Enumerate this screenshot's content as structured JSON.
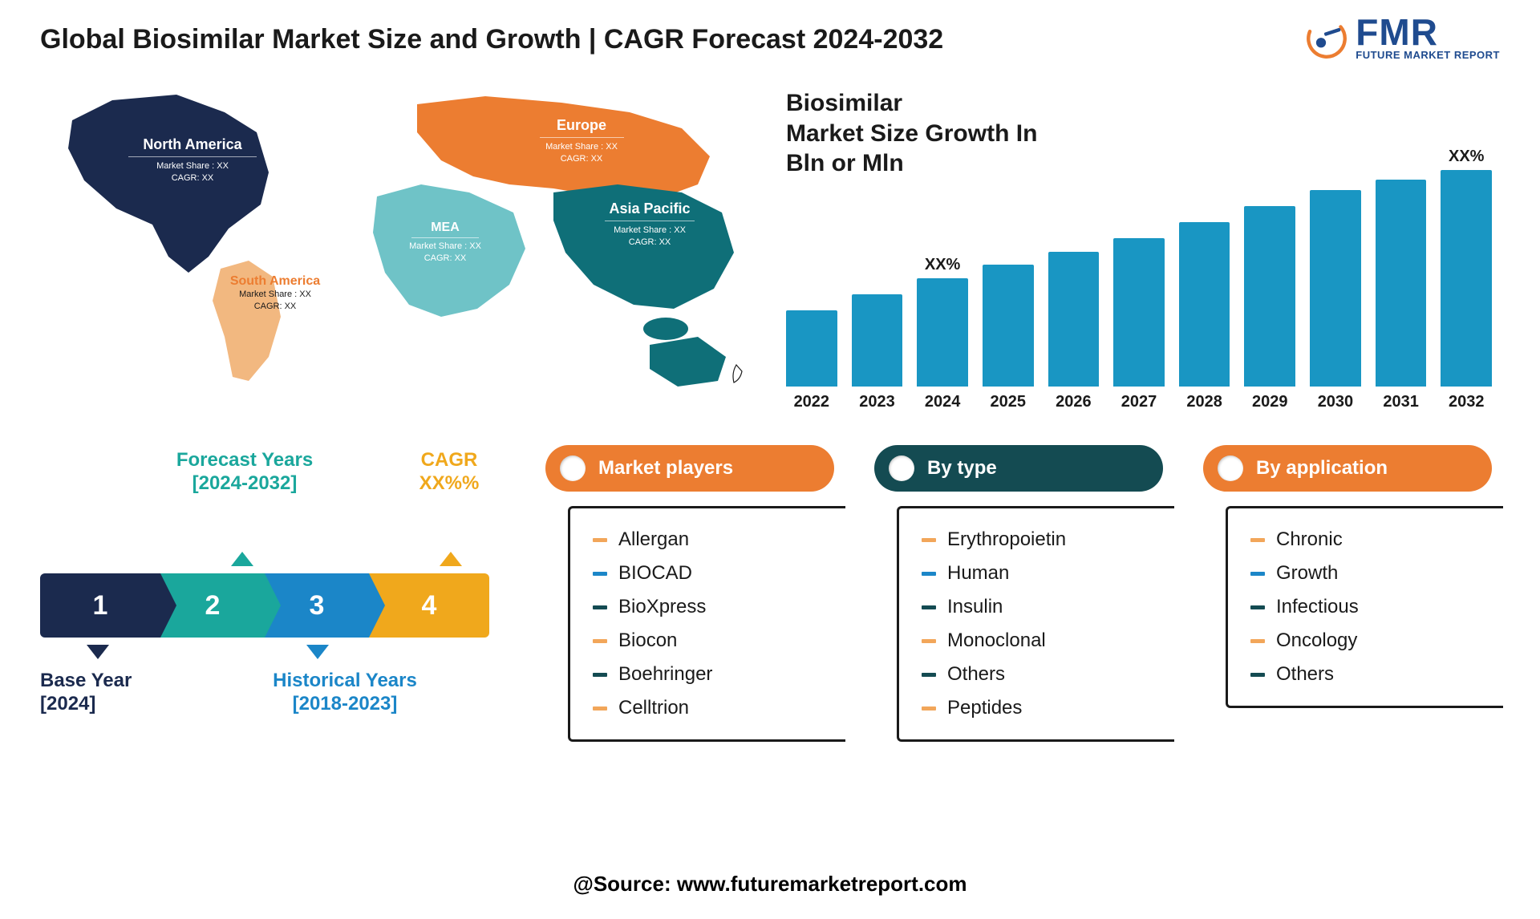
{
  "title": "Global Biosimilar Market Size and Growth | CAGR Forecast 2024-2032",
  "logo": {
    "text": "FMR",
    "subtext": "FUTURE MARKET REPORT"
  },
  "colors": {
    "na": "#1b2a4e",
    "sa": "#f2b880",
    "eu": "#ec7d31",
    "mea": "#6fc3c7",
    "ap": "#0f6f78",
    "bar": "#1996c3",
    "step1": "#1b2a4e",
    "step2": "#1aa79c",
    "step3": "#1b86c8",
    "step4": "#f0a81c",
    "cat1": "#ec7d31",
    "cat2": "#144b52",
    "cat3": "#ec7d31",
    "tick_orange": "#f2a65a",
    "tick_blue": "#1b86c8",
    "tick_teal": "#144b52"
  },
  "regions": {
    "na": {
      "name": "North America",
      "share": "Market Share : XX",
      "cagr": "CAGR: XX"
    },
    "sa": {
      "name": "South America",
      "share": "Market Share : XX",
      "cagr": "CAGR: XX"
    },
    "eu": {
      "name": "Europe",
      "share": "Market Share : XX",
      "cagr": "CAGR: XX"
    },
    "mea": {
      "name": "MEA",
      "share": "Market Share : XX",
      "cagr": "CAGR: XX"
    },
    "ap": {
      "name": "Asia Pacific",
      "share": "Market Share : XX",
      "cagr": "CAGR: XX"
    }
  },
  "chart": {
    "title_line1": "Biosimilar",
    "title_line2": "Market Size Growth In",
    "title_line3": "Bln or Mln",
    "type": "bar",
    "bar_color": "#1996c3",
    "years": [
      "2022",
      "2023",
      "2024",
      "2025",
      "2026",
      "2027",
      "2028",
      "2029",
      "2030",
      "2031",
      "2032"
    ],
    "values": [
      95,
      115,
      135,
      152,
      168,
      185,
      205,
      225,
      245,
      258,
      270
    ],
    "pct_labels": {
      "2": "XX%",
      "10": "XX%"
    }
  },
  "stepper": {
    "labels": {
      "base": "Base Year [2024]",
      "forecast": "Forecast Years [2024-2032]",
      "historical": "Historical Years [2018-2023]",
      "cagr": "CAGR XX%%"
    },
    "steps": [
      "1",
      "2",
      "3",
      "4"
    ]
  },
  "categories": [
    {
      "header": "Market players",
      "header_color_key": "cat1",
      "items": [
        {
          "label": "Allergan",
          "tick": "tick_orange"
        },
        {
          "label": "BIOCAD",
          "tick": "tick_blue"
        },
        {
          "label": "BioXpress",
          "tick": "tick_teal"
        },
        {
          "label": "Biocon",
          "tick": "tick_orange"
        },
        {
          "label": "Boehringer",
          "tick": "tick_teal"
        },
        {
          "label": "Celltrion",
          "tick": "tick_orange"
        }
      ]
    },
    {
      "header": "By type",
      "header_color_key": "cat2",
      "items": [
        {
          "label": "Erythropoietin",
          "tick": "tick_orange"
        },
        {
          "label": "Human",
          "tick": "tick_blue"
        },
        {
          "label": "Insulin",
          "tick": "tick_teal"
        },
        {
          "label": "Monoclonal",
          "tick": "tick_orange"
        },
        {
          "label": "Others",
          "tick": "tick_teal"
        },
        {
          "label": "Peptides",
          "tick": "tick_orange"
        }
      ]
    },
    {
      "header": "By application",
      "header_color_key": "cat3",
      "items": [
        {
          "label": "Chronic",
          "tick": "tick_orange"
        },
        {
          "label": "Growth",
          "tick": "tick_blue"
        },
        {
          "label": "Infectious",
          "tick": "tick_teal"
        },
        {
          "label": "Oncology",
          "tick": "tick_orange"
        },
        {
          "label": "Others",
          "tick": "tick_teal"
        }
      ]
    }
  ],
  "source": "@Source: www.futuremarketreport.com"
}
